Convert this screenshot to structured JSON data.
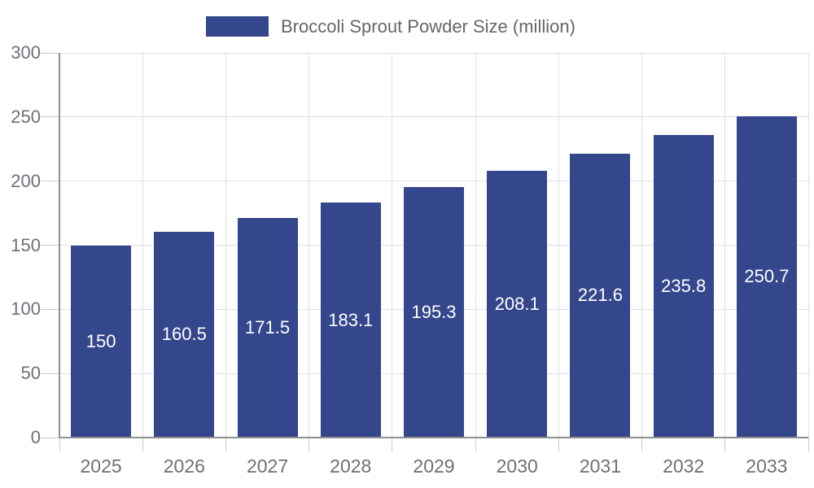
{
  "legend": {
    "label": "Broccoli Sprout Powder Size (million)"
  },
  "chart_data": {
    "type": "bar",
    "title": "Broccoli Sprout Powder Size (million)",
    "categories": [
      "2025",
      "2026",
      "2027",
      "2028",
      "2029",
      "2030",
      "2031",
      "2032",
      "2033"
    ],
    "values": [
      150,
      160.5,
      171.5,
      183.1,
      195.3,
      208.1,
      221.6,
      235.8,
      250.7
    ],
    "value_labels": [
      "150",
      "160.5",
      "171.5",
      "183.1",
      "195.3",
      "208.1",
      "221.6",
      "235.8",
      "250.7"
    ],
    "xlabel": "",
    "ylabel": "",
    "ylim": [
      0,
      300
    ],
    "yticks": [
      0,
      50,
      100,
      150,
      200,
      250,
      300
    ],
    "grid": true,
    "legend_position": "top"
  },
  "colors": {
    "bar": "#35478C",
    "grid": "#E0E0E0",
    "axis": "#8F8F8F",
    "tick": "#C9C9C9",
    "axis_text": "#6E7079",
    "legend_text": "#666666",
    "value_label": "#FFFFFF",
    "background": "#FFFFFF"
  }
}
